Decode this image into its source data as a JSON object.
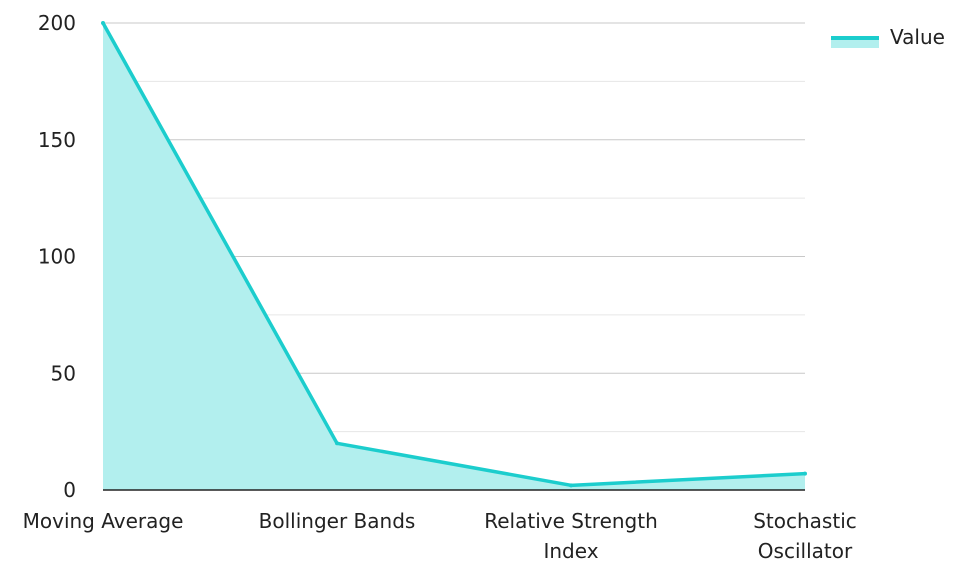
{
  "chart_data": {
    "type": "area",
    "categories": [
      "Moving Average",
      "Bollinger Bands",
      "Relative Strength Index",
      "Stochastic Oscillator"
    ],
    "category_lines": [
      [
        "Moving Average"
      ],
      [
        "Bollinger Bands"
      ],
      [
        "Relative Strength",
        "Index"
      ],
      [
        "Stochastic",
        "Oscillator"
      ]
    ],
    "series": [
      {
        "name": "Value",
        "values": [
          200,
          20,
          2,
          7
        ],
        "color": "#1ccdcd",
        "fill": "#b2efee"
      }
    ],
    "ylim": [
      0,
      200
    ],
    "yticks": [
      0,
      50,
      100,
      150,
      200
    ],
    "grid": true,
    "legend": "top-right"
  }
}
